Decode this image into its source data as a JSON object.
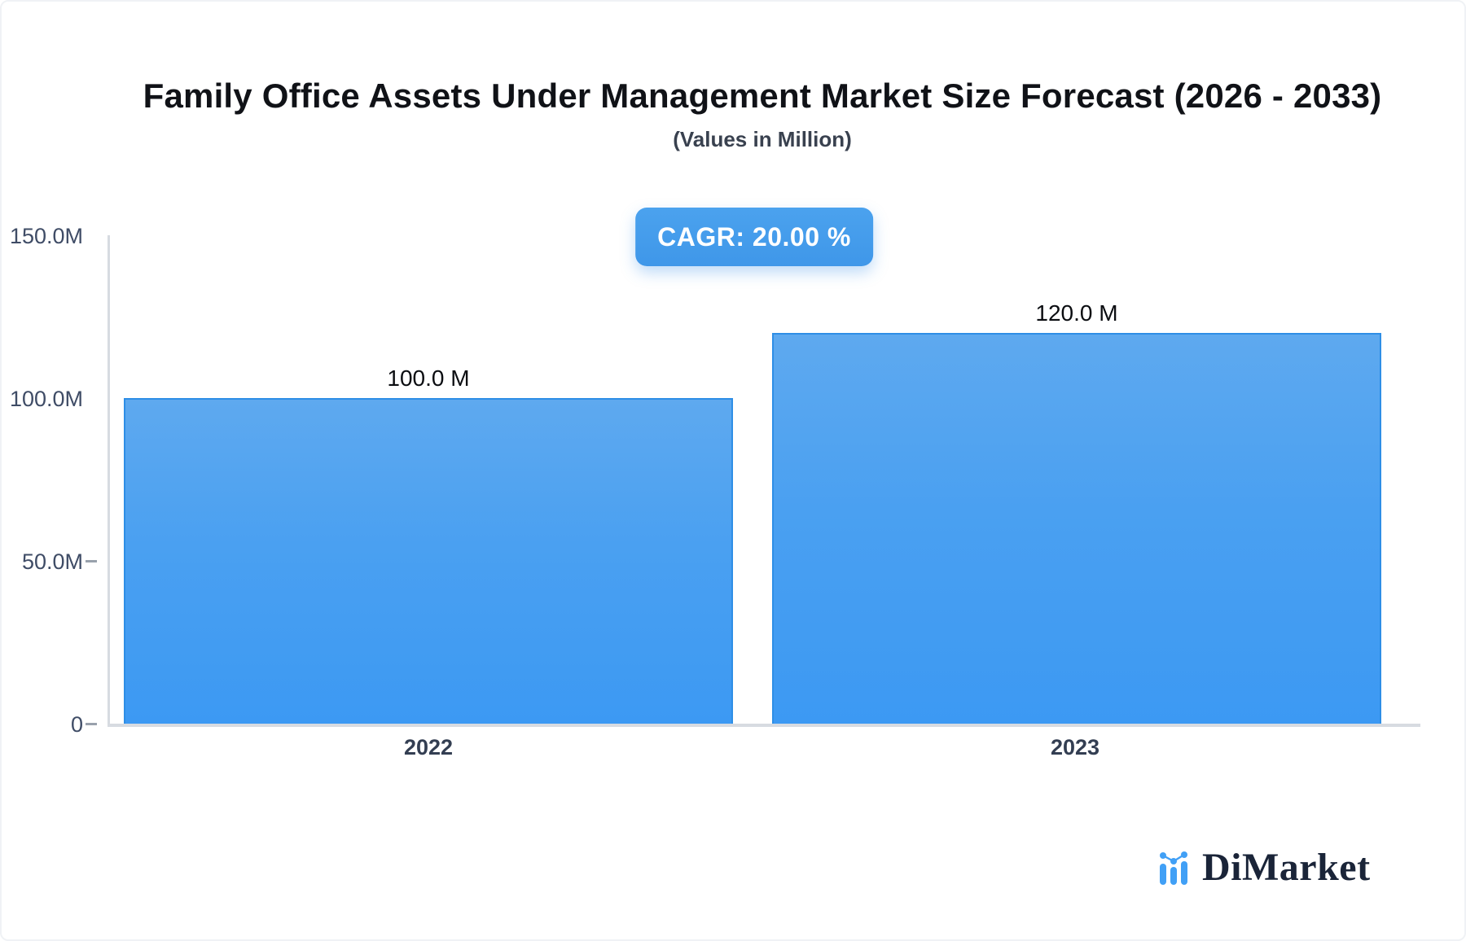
{
  "header": {
    "title": "Family Office Assets Under Management Market Size Forecast (2026 - 2033)",
    "subtitle": "(Values in Million)"
  },
  "badge": {
    "label": "CAGR: 20.00 %"
  },
  "logo": {
    "text": "DiMarket",
    "icon": "bar-chart-logo-icon"
  },
  "colors": {
    "bar_fill_top": "#5ea9ef",
    "bar_fill_bottom": "#3c99f3",
    "bar_border": "#2e8ee6",
    "badge_blue": "#459eeb",
    "axis_gray": "#d7dbe1",
    "logo_blue": "#41a0f6",
    "logo_navy": "#1a2438"
  },
  "chart_data": {
    "type": "bar",
    "title": "Family Office Assets Under Management Market Size Forecast (2026 - 2033)",
    "subtitle": "(Values in Million)",
    "cagr_label": "CAGR: 20.00 %",
    "categories": [
      "2022",
      "2023"
    ],
    "values": [
      100.0,
      120.0
    ],
    "value_labels": [
      "100.0 M",
      "120.0 M"
    ],
    "unit": "Million",
    "xlabel": "",
    "ylabel": "",
    "ylim": [
      0,
      150
    ],
    "yticks": [
      {
        "value": 150,
        "label": "150.0M",
        "dash": false
      },
      {
        "value": 100,
        "label": "100.0M",
        "dash": false
      },
      {
        "value": 50,
        "label": "50.0M",
        "dash": true
      },
      {
        "value": 0,
        "label": "0",
        "dash": true
      }
    ],
    "grid": false,
    "legend_position": "none"
  }
}
